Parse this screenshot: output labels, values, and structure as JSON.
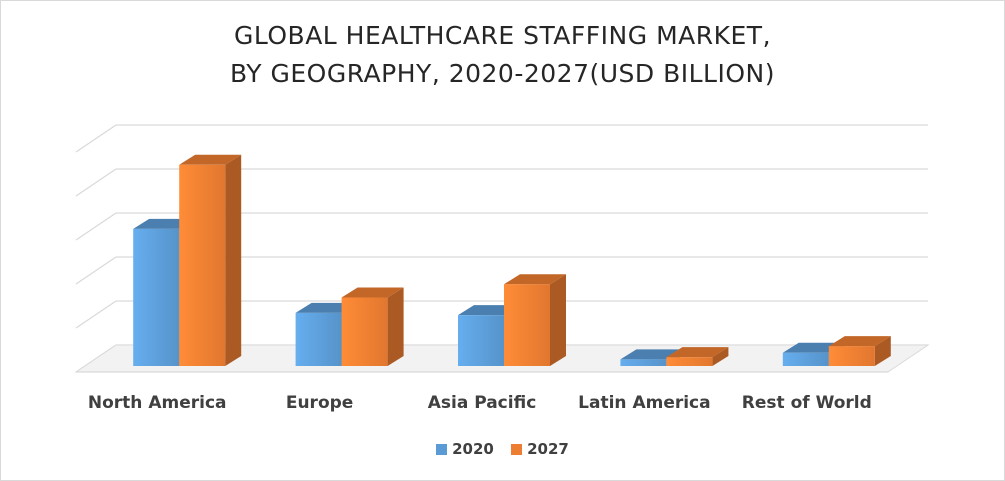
{
  "colors": {
    "s2020": "#5b9bd5",
    "s2027": "#ed7d31"
  },
  "chart_data": {
    "type": "bar",
    "style": "3d-clustered-column",
    "title": "GLOBAL HEALTHCARE STAFFING MARKET,",
    "subtitle": "BY GEOGRAPHY, 2020-2027(USD BILLION)",
    "categories": [
      "North America",
      "Europe",
      "Asia Pacific",
      "Latin America",
      "Rest of World"
    ],
    "series": [
      {
        "name": "2020",
        "values": [
          62,
          24,
          23,
          3,
          6
        ]
      },
      {
        "name": "2027",
        "values": [
          91,
          31,
          37,
          4,
          9
        ]
      }
    ],
    "ylim": [
      0,
      100
    ],
    "grid": true,
    "legend_position": "bottom"
  }
}
